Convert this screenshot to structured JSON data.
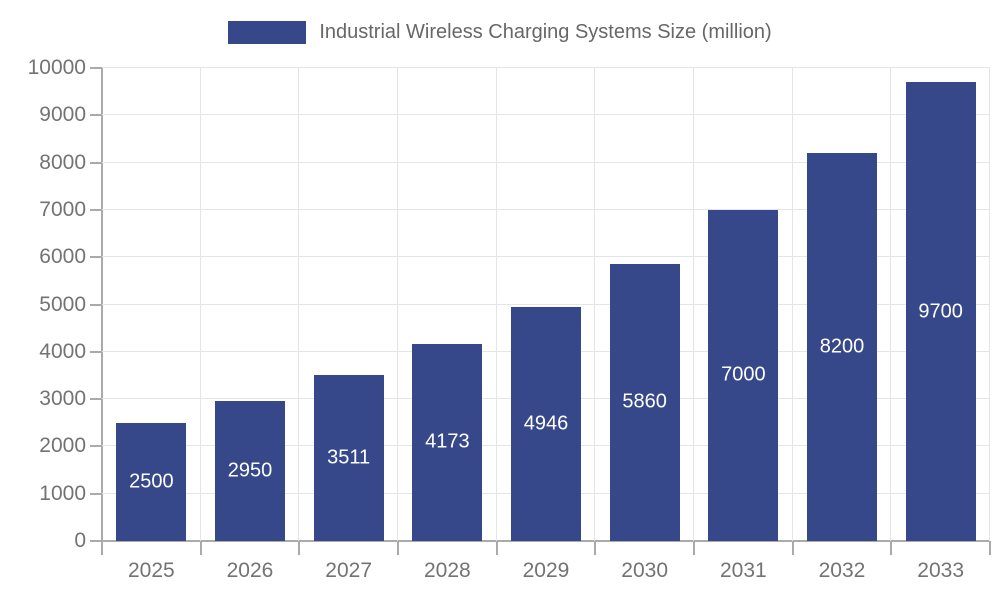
{
  "legend": {
    "label": "Industrial Wireless Charging Systems Size (million)"
  },
  "colors": {
    "bar": "#36488A",
    "grid": "#e4e4ec",
    "axis": "#aaaaaa",
    "tick_label_text": "#737373",
    "legend_text": "#676767",
    "value_label_text": "#ffffff",
    "background": "#ffffff"
  },
  "chart_data": {
    "type": "bar",
    "title": "Industrial Wireless Charging Systems Size (million)",
    "categories": [
      "2025",
      "2026",
      "2027",
      "2028",
      "2029",
      "2030",
      "2031",
      "2032",
      "2033"
    ],
    "values": [
      2500,
      2950,
      3511,
      4173,
      4946,
      5860,
      7000,
      8200,
      9700
    ],
    "xlabel": "",
    "ylabel": "",
    "ylim": [
      0,
      10000
    ],
    "ytick_step": 1000,
    "ytick_labels": [
      "0",
      "1000",
      "2000",
      "3000",
      "4000",
      "5000",
      "6000",
      "7000",
      "8000",
      "9000",
      "10000"
    ],
    "grid": true,
    "legend_position": "top-center",
    "bar_labels_inside": true
  }
}
